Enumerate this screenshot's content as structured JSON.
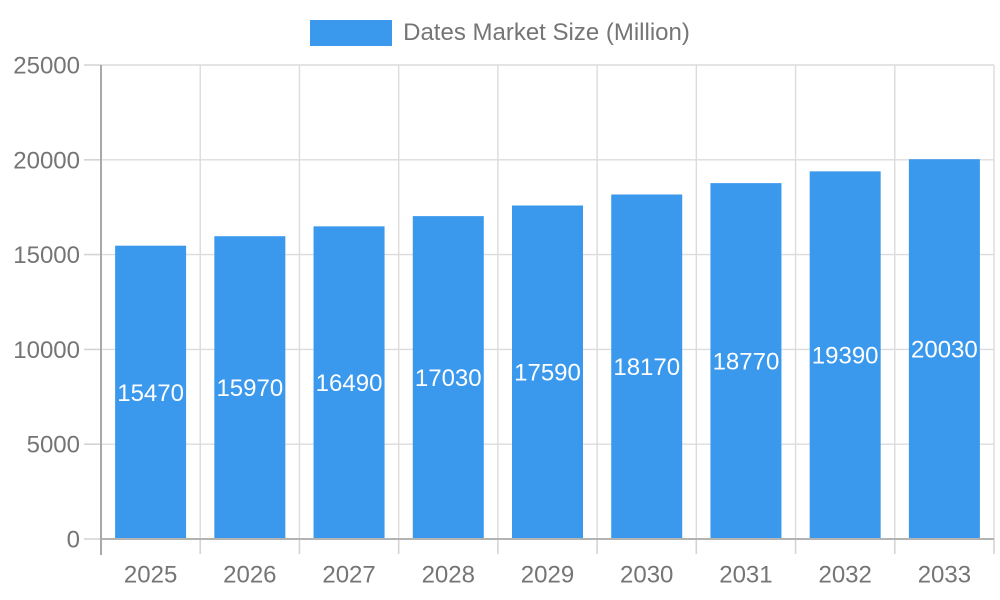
{
  "chart_data": {
    "type": "bar",
    "title": "",
    "legend": "Dates Market Size (Million)",
    "legend_position": "top",
    "categories": [
      "2025",
      "2026",
      "2027",
      "2028",
      "2029",
      "2030",
      "2031",
      "2032",
      "2033"
    ],
    "series": [
      {
        "name": "Dates Market Size (Million)",
        "values": [
          15470,
          15970,
          16490,
          17030,
          17590,
          18170,
          18770,
          19390,
          20030
        ]
      }
    ],
    "yticks": [
      0,
      5000,
      10000,
      15000,
      20000,
      25000
    ],
    "ylim": [
      0,
      25000
    ],
    "xlabel": "",
    "ylabel": "",
    "grid": true,
    "bar_label_position": "inside-center"
  },
  "colors": {
    "bar": "#3a99ec",
    "bar_label": "#ffffff",
    "axis_text": "#757575",
    "grid": "#dcdcdc",
    "tick": "#d4d4d4",
    "axis_line": "#a8a8a8",
    "baseline": "#b3b3b3",
    "background": "#ffffff"
  }
}
